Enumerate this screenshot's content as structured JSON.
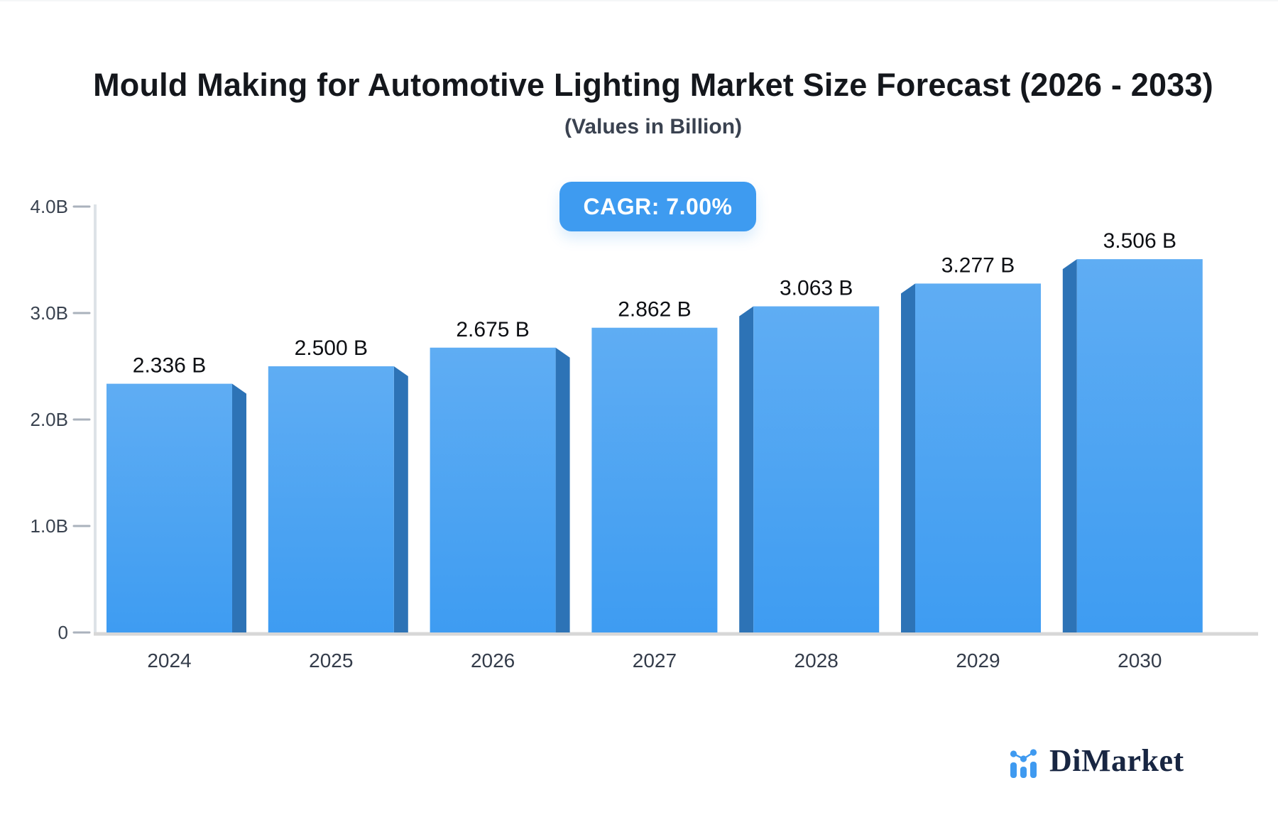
{
  "title": "Mould Making for Automotive Lighting Market Size Forecast (2026 - 2033)",
  "subtitle": "(Values in Billion)",
  "badge": {
    "label": "CAGR: 7.00%",
    "color": "#3e9bf0"
  },
  "chart_data": {
    "type": "bar",
    "title": "Mould Making for Automotive Lighting Market Size Forecast (2026 - 2033)",
    "subtitle": "(Values in Billion)",
    "categories": [
      "2024",
      "2025",
      "2026",
      "2027",
      "2028",
      "2029",
      "2030"
    ],
    "values": [
      2.336,
      2.5,
      2.675,
      2.862,
      3.063,
      3.277,
      3.506
    ],
    "value_labels": [
      "2.336 B",
      "2.500 B",
      "2.675 B",
      "2.862 B",
      "3.063 B",
      "3.277 B",
      "3.506 B"
    ],
    "xlabel": "",
    "ylabel": "",
    "ylim": [
      0,
      4
    ],
    "yticks": [
      {
        "value": 4.0,
        "label": "4.0B"
      },
      {
        "value": 3.0,
        "label": "3.0B"
      },
      {
        "value": 2.0,
        "label": "2.0B"
      },
      {
        "value": 1.0,
        "label": "1.0B"
      },
      {
        "value": 0.0,
        "label": "0"
      }
    ],
    "grid": false,
    "legend": false,
    "label_position": "top",
    "bar_style": "pseudo-3d",
    "colors": {
      "bar_face_top": "#5fadf3",
      "bar_face_bottom": "#3e9cf2",
      "bar_side": "#2d73b6",
      "axis_line": "#dde2e7",
      "baseline": "#d7d7d7",
      "tick_dash": "#aab2bc"
    }
  },
  "watermark": {
    "brand": "DiMarket",
    "icon": "bar-chart-logo-icon",
    "icon_color": "#3f9af0",
    "text_color": "#182642"
  }
}
